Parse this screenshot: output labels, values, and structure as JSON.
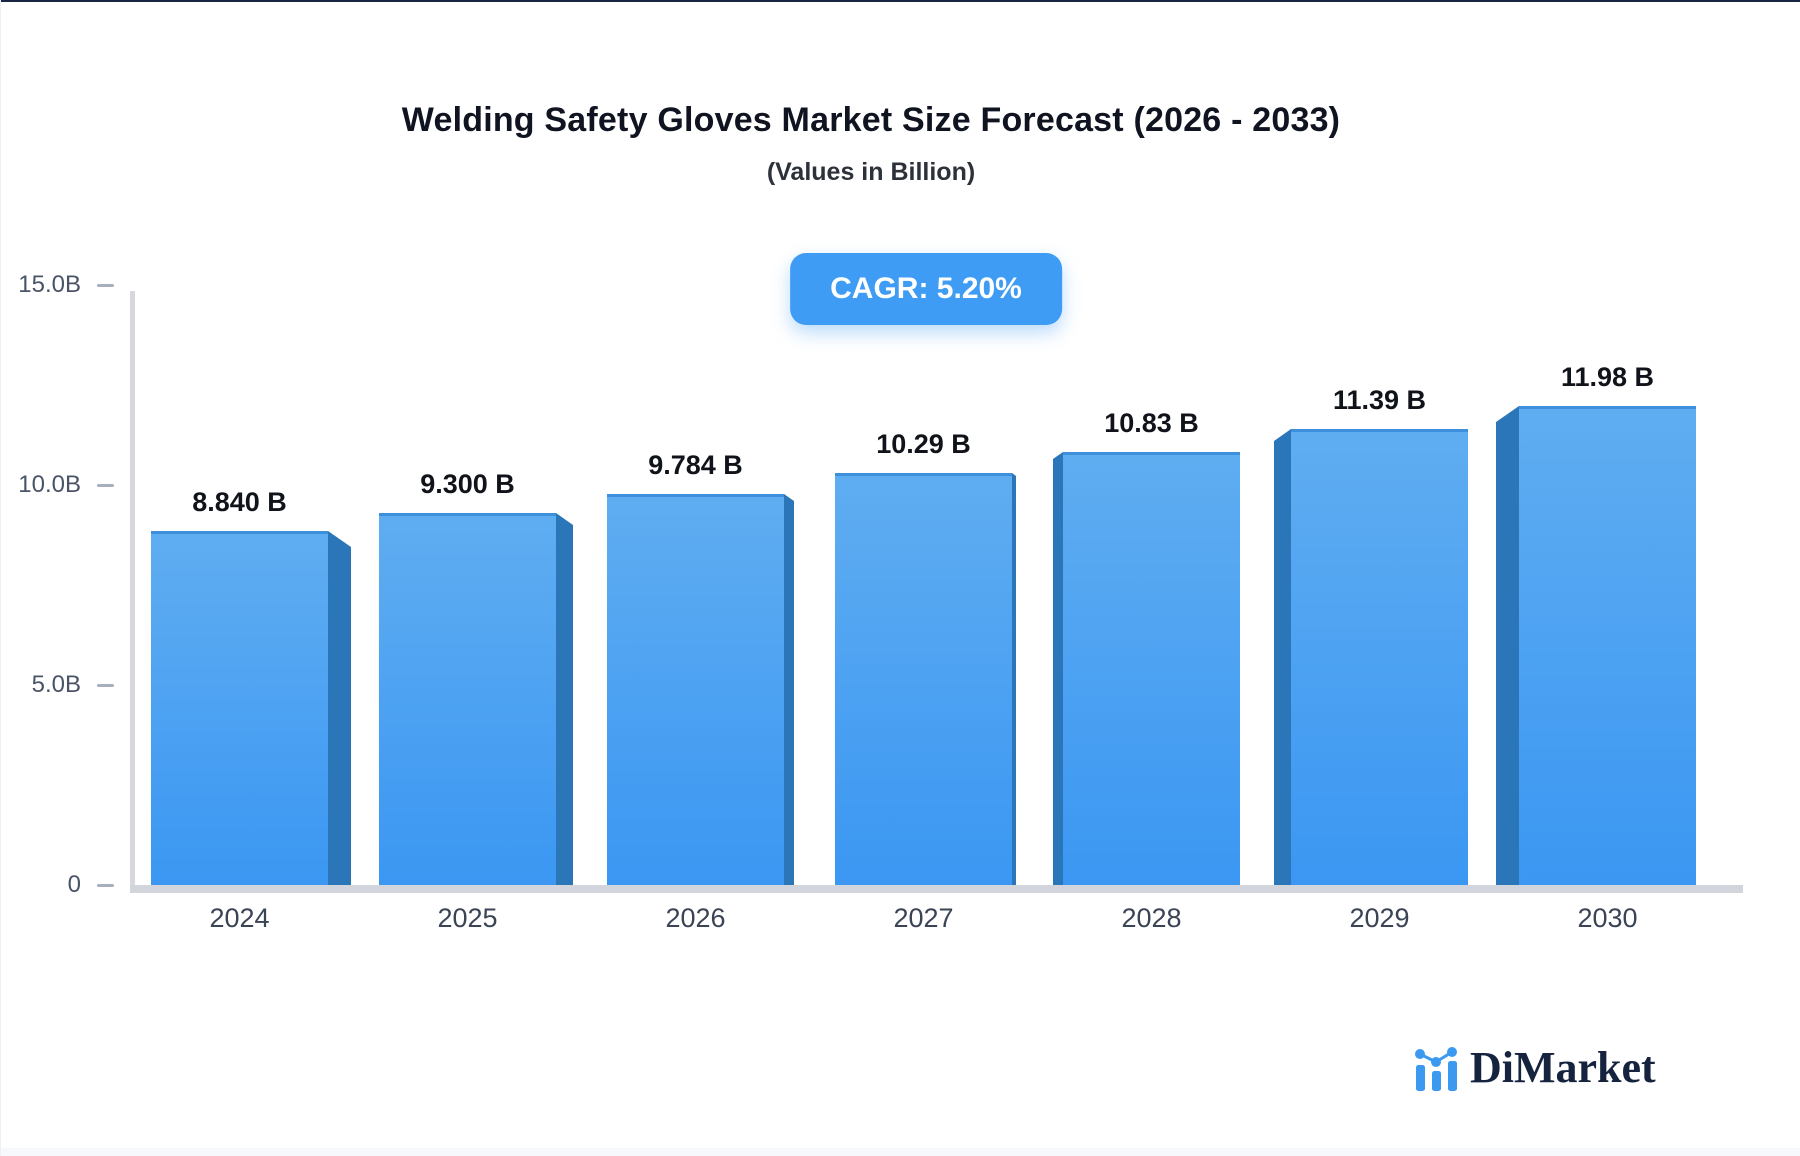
{
  "header": {
    "title": "Welding Safety Gloves Market Size Forecast (2026 - 2033)",
    "subtitle": "(Values in Billion)",
    "cagr_badge": "CAGR: 5.20%"
  },
  "logo": {
    "text": "DiMarket",
    "icon": "bar-chart-trend-icon"
  },
  "colors": {
    "badge_bg": "#3f9cf4",
    "badge_text": "#ffffff",
    "bar_front_top": "#5fadf1",
    "bar_front_bottom": "#3b97f2",
    "bar_side": "#2b76b8",
    "axis_line": "#d4d6dd",
    "title_text": "#0f1420",
    "logo_blue": "#3b99f0",
    "logo_navy": "#15233f"
  },
  "chart_data": {
    "type": "bar",
    "style": "3d-perspective-bars",
    "title": "Welding Safety Gloves Market Size Forecast (2026 - 2033)",
    "subtitle": "(Values in Billion)",
    "xlabel": "",
    "ylabel": "",
    "categories": [
      "2024",
      "2025",
      "2026",
      "2027",
      "2028",
      "2029",
      "2030"
    ],
    "values": [
      8.84,
      9.3,
      9.784,
      10.29,
      10.83,
      11.39,
      11.98
    ],
    "value_labels": [
      "8.840 B",
      "9.300 B",
      "9.784 B",
      "10.29 B",
      "10.83 B",
      "11.39 B",
      "11.98 B"
    ],
    "ylim": [
      0,
      15
    ],
    "yticks": [
      {
        "value": 15,
        "label": "15.0B"
      },
      {
        "value": 10,
        "label": "10.0B"
      },
      {
        "value": 5,
        "label": "5.0B"
      },
      {
        "value": 0,
        "label": "0"
      }
    ],
    "grid": false,
    "legend_position": "none"
  }
}
